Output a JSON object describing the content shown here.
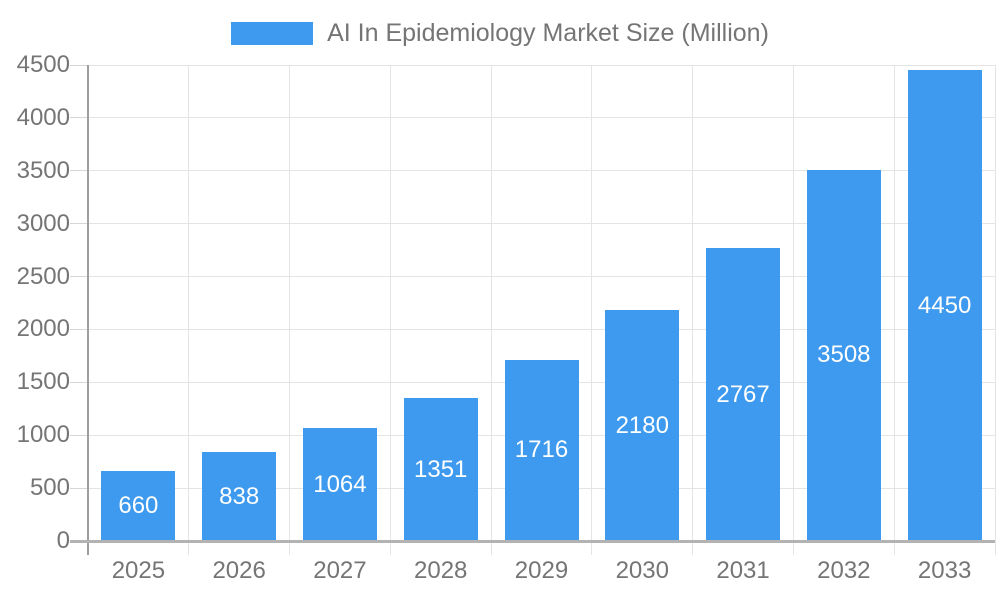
{
  "legend": {
    "label": "AI In Epidemiology Market Size (Million)"
  },
  "colors": {
    "bar": "#3D9AEE",
    "bar_label": "#FFFFFF",
    "axis_line": "#9E9E9E",
    "baseline": "#B3B3B3",
    "gridline": "#E4E4E4",
    "tick": "#D6D6D6",
    "label_text": "#757575",
    "background": "#FFFFFF"
  },
  "chart_data": {
    "type": "bar",
    "title": "AI In Epidemiology Market Size (Million)",
    "categories": [
      "2025",
      "2026",
      "2027",
      "2028",
      "2029",
      "2030",
      "2031",
      "2032",
      "2033"
    ],
    "values": [
      660,
      838,
      1064,
      1351,
      1716,
      2180,
      2767,
      3508,
      4450
    ],
    "xlabel": "",
    "ylabel": "",
    "ylim": [
      0,
      4500
    ],
    "ytick_interval": 500,
    "grid": true,
    "legend_position": "top",
    "bar_value_labels": "inside-center"
  }
}
